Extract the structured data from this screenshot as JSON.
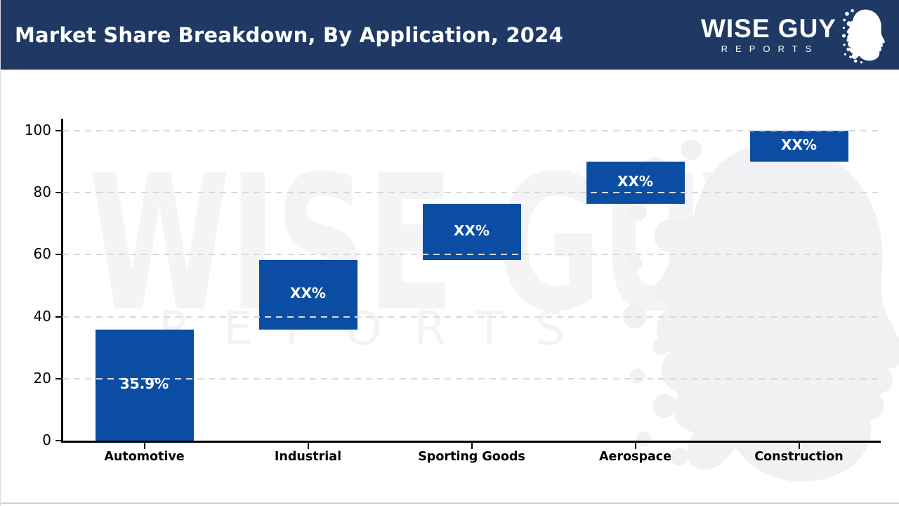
{
  "header": {
    "title": "Market Share Breakdown, By Application, 2024",
    "bg_color": "#1f3864",
    "logo": {
      "line1": "WISE GUY",
      "line2": "REPORTS"
    }
  },
  "watermark": {
    "line1": "WISE GUY",
    "line2": "REPORTS"
  },
  "chart_data": {
    "type": "bar",
    "subtype": "waterfall-floating-bars",
    "title": "Market Share Breakdown, By Application, 2024",
    "categories": [
      "Automotive",
      "Industrial",
      "Sporting Goods",
      "Aerospace",
      "Construction"
    ],
    "segments": [
      {
        "category": "Automotive",
        "start": 0,
        "end": 35.9,
        "label": "35.9%"
      },
      {
        "category": "Industrial",
        "start": 35.9,
        "end": 58.3,
        "label": "XX%"
      },
      {
        "category": "Sporting Goods",
        "start": 58.3,
        "end": 76.4,
        "label": "XX%"
      },
      {
        "category": "Aerospace",
        "start": 76.4,
        "end": 90.0,
        "label": "XX%"
      },
      {
        "category": "Construction",
        "start": 90.0,
        "end": 100.0,
        "label": "XX%"
      }
    ],
    "xlabel": "",
    "ylabel": "",
    "ylim": [
      0,
      100
    ],
    "yticks": [
      0,
      20,
      40,
      60,
      80,
      100
    ],
    "grid": true,
    "grid_style": "dashed",
    "legend": false,
    "bar_color": "#0b4da2",
    "bar_label_color": "#ffffff",
    "axis_color": "#000000",
    "grid_color": "#d9d9d9"
  }
}
